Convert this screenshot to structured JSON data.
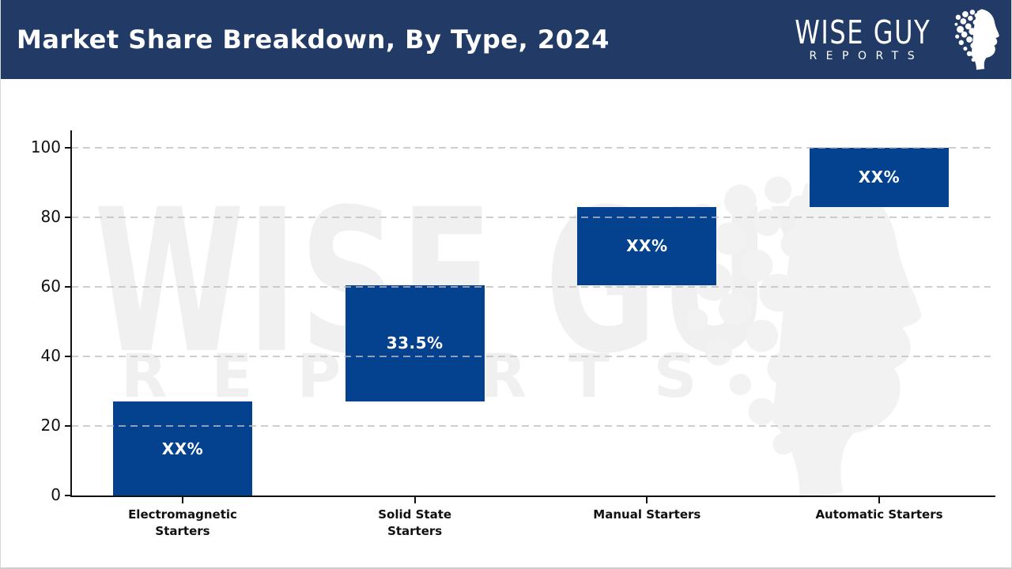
{
  "header": {
    "title": "Market Share Breakdown, By Type, 2024",
    "logo": {
      "name": "WISE GUY",
      "sub": "REPORTS"
    }
  },
  "watermark": {
    "name": "WISE GUY",
    "sub": "REPORTS"
  },
  "colors": {
    "header_bg": "#213a66",
    "bar": "#04418e",
    "grid": "#c9c9c9",
    "axis": "#111111",
    "bar_label": "#ffffff",
    "watermark": "#f0f0f0",
    "watermark_head": "#f2f2f2"
  },
  "chart_data": {
    "type": "bar",
    "subtype": "waterfall",
    "title": "Market Share Breakdown, By Type, 2024",
    "categories": [
      "Electromagnetic Starters",
      "Solid State Starters",
      "Manual Starters",
      "Automatic Starters"
    ],
    "category_lines": [
      [
        "Electromagnetic",
        "Starters"
      ],
      [
        "Solid State",
        "Starters"
      ],
      [
        "Manual Starters"
      ],
      [
        "Automatic Starters"
      ]
    ],
    "series": [
      {
        "name": "Market Share (%)",
        "segments": [
          {
            "category": "Electromagnetic Starters",
            "start": 0,
            "end": 27,
            "label": "XX%"
          },
          {
            "category": "Solid State Starters",
            "start": 27,
            "end": 60.5,
            "label": "33.5%"
          },
          {
            "category": "Manual Starters",
            "start": 60.5,
            "end": 83,
            "label": "XX%"
          },
          {
            "category": "Automatic Starters",
            "start": 83,
            "end": 100,
            "label": "XX%"
          }
        ]
      }
    ],
    "xlabel": "",
    "ylabel": "",
    "yticks": [
      0,
      20,
      40,
      60,
      80,
      100
    ],
    "ylim": [
      0,
      105
    ],
    "grid": "horizontal-dashed",
    "legend": "none"
  }
}
